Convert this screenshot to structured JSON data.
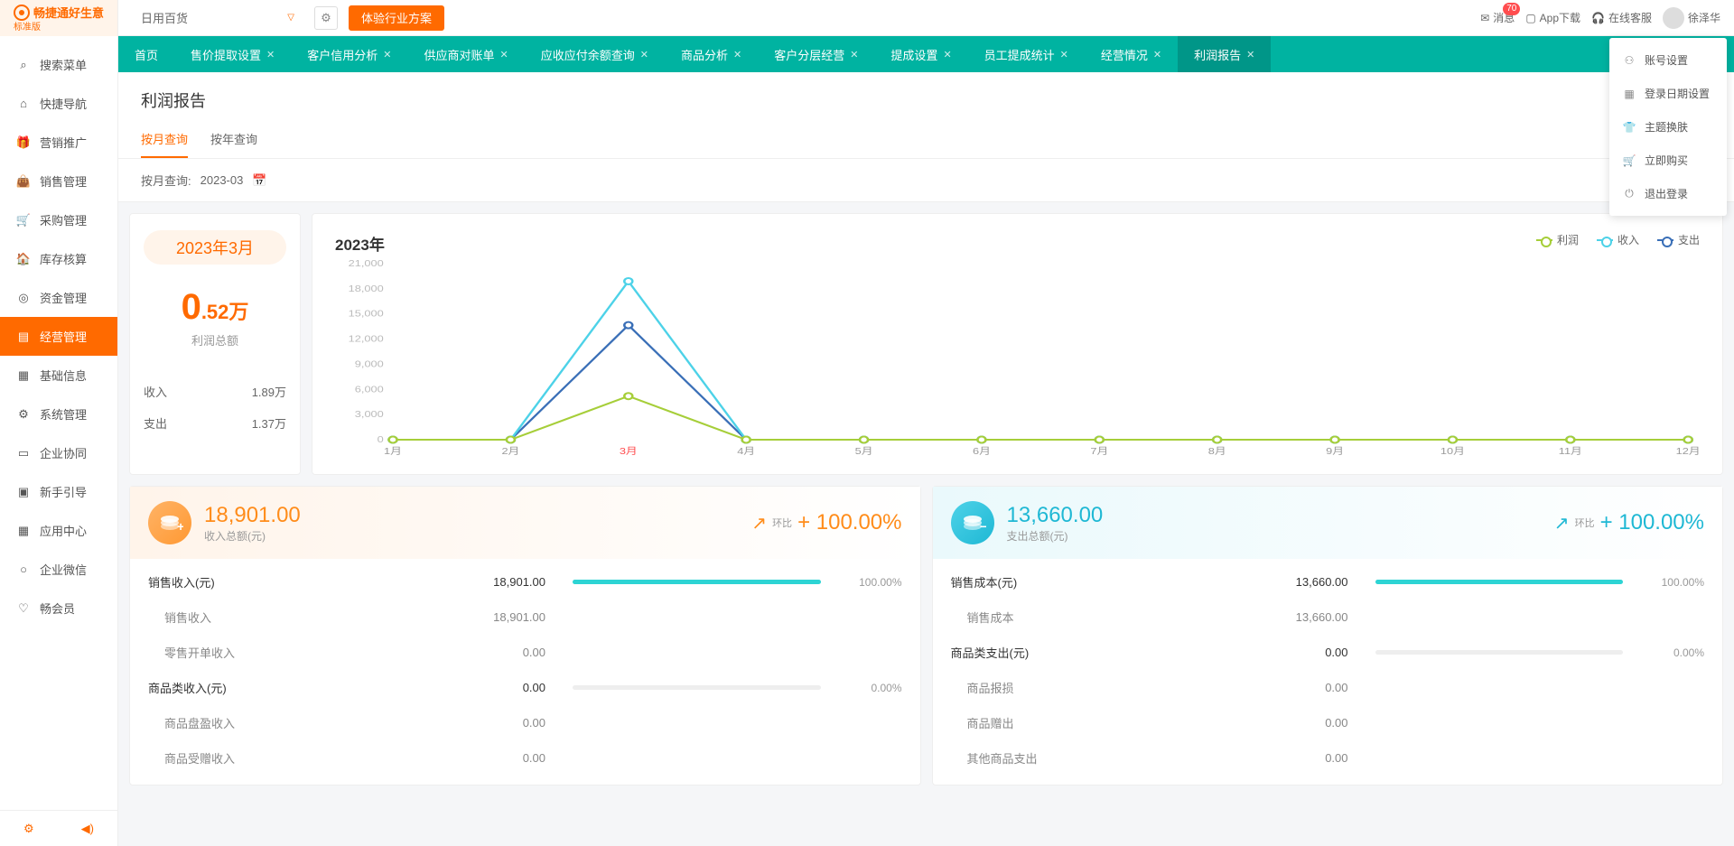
{
  "brand": {
    "name": "畅捷通好生意",
    "edition": "标准版"
  },
  "sidebar": {
    "items": [
      {
        "icon": "search",
        "label": "搜索菜单"
      },
      {
        "icon": "home",
        "label": "快捷导航"
      },
      {
        "icon": "gift",
        "label": "营销推广"
      },
      {
        "icon": "bag",
        "label": "销售管理"
      },
      {
        "icon": "cart",
        "label": "采购管理"
      },
      {
        "icon": "house",
        "label": "库存核算"
      },
      {
        "icon": "coin",
        "label": "资金管理"
      },
      {
        "icon": "chart",
        "label": "经营管理"
      },
      {
        "icon": "file",
        "label": "基础信息"
      },
      {
        "icon": "gear",
        "label": "系统管理"
      },
      {
        "icon": "team",
        "label": "企业协同"
      },
      {
        "icon": "book",
        "label": "新手引导"
      },
      {
        "icon": "grid",
        "label": "应用中心"
      },
      {
        "icon": "wechat",
        "label": "企业微信"
      },
      {
        "icon": "vip",
        "label": "畅会员"
      }
    ],
    "active_index": 7
  },
  "topbar": {
    "category": "日用百货",
    "try_button": "体验行业方案",
    "links": {
      "message": "消息",
      "message_badge": "70",
      "download": "App下载",
      "service": "在线客服"
    },
    "username": "徐泽华"
  },
  "tabs": {
    "items": [
      {
        "label": "首页",
        "closable": false
      },
      {
        "label": "售价提取设置",
        "closable": true
      },
      {
        "label": "客户信用分析",
        "closable": true
      },
      {
        "label": "供应商对账单",
        "closable": true
      },
      {
        "label": "应收应付余额查询",
        "closable": true
      },
      {
        "label": "商品分析",
        "closable": true
      },
      {
        "label": "客户分层经营",
        "closable": true
      },
      {
        "label": "提成设置",
        "closable": true
      },
      {
        "label": "员工提成统计",
        "closable": true
      },
      {
        "label": "经营情况",
        "closable": true
      },
      {
        "label": "利润报告",
        "closable": true
      }
    ],
    "active_index": 10
  },
  "page": {
    "title": "利润报告",
    "sub_tabs": {
      "monthly": "按月查询",
      "yearly": "按年查询"
    },
    "filter": {
      "label": "按月查询:",
      "value": "2023-03"
    }
  },
  "summary": {
    "date": "2023年3月",
    "profit_int": "0",
    "profit_frac": ".52",
    "profit_unit": "万",
    "profit_label": "利润总额",
    "income_label": "收入",
    "income_value": "1.89万",
    "expense_label": "支出",
    "expense_value": "1.37万"
  },
  "chart": {
    "title": "2023年",
    "legend": {
      "profit": "利润",
      "income": "收入",
      "expense": "支出"
    },
    "colors": {
      "profit": "#a6ce39",
      "income": "#4dd2e8",
      "expense": "#3a6fb7"
    },
    "y_ticks": [
      "21,000",
      "18,000",
      "15,000",
      "12,000",
      "9,000",
      "6,000",
      "3,000",
      "0"
    ],
    "y_max": 21000,
    "x_labels": [
      "1月",
      "2月",
      "3月",
      "4月",
      "5月",
      "6月",
      "7月",
      "8月",
      "9月",
      "10月",
      "11月",
      "12月"
    ],
    "highlight_month_index": 2,
    "series": {
      "profit": [
        0,
        0,
        5200,
        0,
        0,
        0,
        0,
        0,
        0,
        0,
        0,
        0
      ],
      "income": [
        0,
        0,
        18901,
        0,
        0,
        0,
        0,
        0,
        0,
        0,
        0,
        0
      ],
      "expense": [
        0,
        0,
        13660,
        0,
        0,
        0,
        0,
        0,
        0,
        0,
        0,
        0
      ]
    }
  },
  "income_card": {
    "amount": "18,901.00",
    "sub": "收入总额(元)",
    "trend_label": "环比",
    "trend_value": "+ 100.00%",
    "rows": [
      {
        "label": "销售收入(元)",
        "value": "18,901.00",
        "pct": "100.00%",
        "fill": 100,
        "indent": false
      },
      {
        "label": "销售收入",
        "value": "18,901.00",
        "pct": "",
        "fill": 0,
        "indent": true
      },
      {
        "label": "零售开单收入",
        "value": "0.00",
        "pct": "",
        "fill": 0,
        "indent": true
      },
      {
        "label": "商品类收入(元)",
        "value": "0.00",
        "pct": "0.00%",
        "fill": 0,
        "indent": false
      },
      {
        "label": "商品盘盈收入",
        "value": "0.00",
        "pct": "",
        "fill": 0,
        "indent": true
      },
      {
        "label": "商品受赠收入",
        "value": "0.00",
        "pct": "",
        "fill": 0,
        "indent": true
      }
    ]
  },
  "expense_card": {
    "amount": "13,660.00",
    "sub": "支出总额(元)",
    "trend_label": "环比",
    "trend_value": "+ 100.00%",
    "rows": [
      {
        "label": "销售成本(元)",
        "value": "13,660.00",
        "pct": "100.00%",
        "fill": 100,
        "indent": false
      },
      {
        "label": "销售成本",
        "value": "13,660.00",
        "pct": "",
        "fill": 0,
        "indent": true
      },
      {
        "label": "商品类支出(元)",
        "value": "0.00",
        "pct": "0.00%",
        "fill": 0,
        "indent": false
      },
      {
        "label": "商品报损",
        "value": "0.00",
        "pct": "",
        "fill": 0,
        "indent": true
      },
      {
        "label": "商品赠出",
        "value": "0.00",
        "pct": "",
        "fill": 0,
        "indent": true
      },
      {
        "label": "其他商品支出",
        "value": "0.00",
        "pct": "",
        "fill": 0,
        "indent": true
      }
    ]
  },
  "user_menu": {
    "items": [
      {
        "icon": "user",
        "label": "账号设置"
      },
      {
        "icon": "calendar",
        "label": "登录日期设置"
      },
      {
        "icon": "shirt",
        "label": "主题换肤"
      },
      {
        "icon": "cart",
        "label": "立即购买"
      },
      {
        "icon": "power",
        "label": "退出登录"
      }
    ]
  }
}
